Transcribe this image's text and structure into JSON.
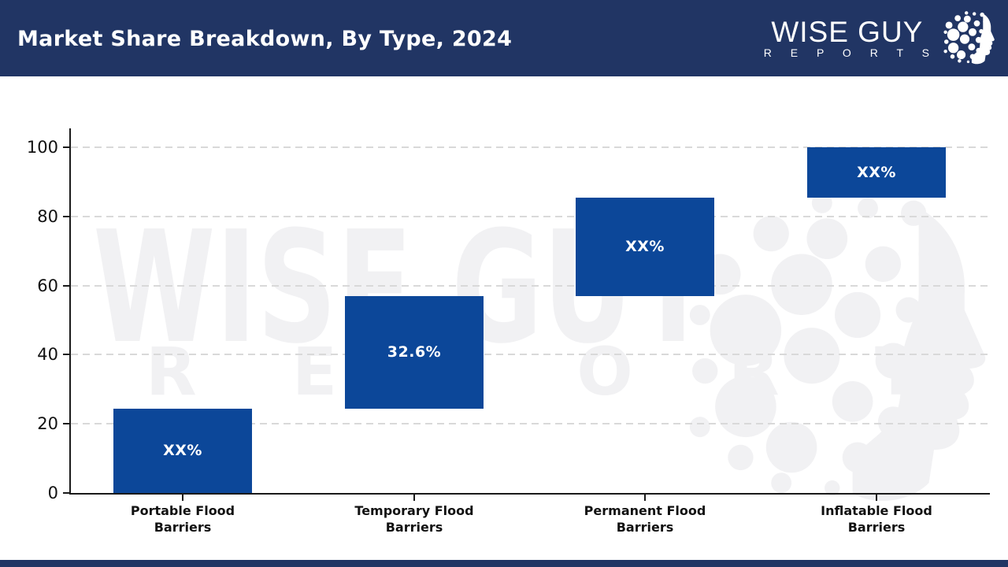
{
  "header": {
    "title": "Market Share Breakdown, By Type, 2024",
    "logo": {
      "line1": "WISE GUY",
      "line2": "R E P O R T S"
    }
  },
  "watermark": {
    "line1": "WISE GUY",
    "line2": "R E P O R T S"
  },
  "colors": {
    "header_bg": "#213564",
    "footer_bg": "#213564",
    "bar": "#0c4799",
    "bar_label": "#ffffff",
    "grid": "#d9d9d9",
    "axis": "#1a1a1a",
    "watermark": "#f1f1f3",
    "title_text": "#ffffff",
    "tick_text": "#111111"
  },
  "chart_data": {
    "type": "bar",
    "subtype": "floating-stacked-percentage",
    "title": "Market Share Breakdown, By Type, 2024",
    "xlabel": "",
    "ylabel": "",
    "ylim": [
      0,
      100
    ],
    "y_ticks": [
      0,
      20,
      40,
      60,
      80,
      100
    ],
    "grid": "dashed-horizontal",
    "legend": "none",
    "categories": [
      "Portable Flood Barriers",
      "Temporary Flood Barriers",
      "Permanent Flood Barriers",
      "Inflatable Flood Barriers"
    ],
    "segments": [
      {
        "category": "Portable Flood Barriers",
        "lines": [
          "Portable Flood",
          "Barriers"
        ],
        "start": 0,
        "end": 24.4,
        "value": 24.4,
        "bar_label": "XX%"
      },
      {
        "category": "Temporary Flood Barriers",
        "lines": [
          "Temporary Flood",
          "Barriers"
        ],
        "start": 24.4,
        "end": 57.0,
        "value": 32.6,
        "bar_label": "32.6%"
      },
      {
        "category": "Permanent Flood Barriers",
        "lines": [
          "Permanent Flood",
          "Barriers"
        ],
        "start": 57.0,
        "end": 85.5,
        "value": 28.5,
        "bar_label": "XX%"
      },
      {
        "category": "Inflatable Flood Barriers",
        "lines": [
          "Inflatable Flood",
          "Barriers"
        ],
        "start": 85.5,
        "end": 100,
        "value": 14.5,
        "bar_label": "XX%"
      }
    ]
  }
}
